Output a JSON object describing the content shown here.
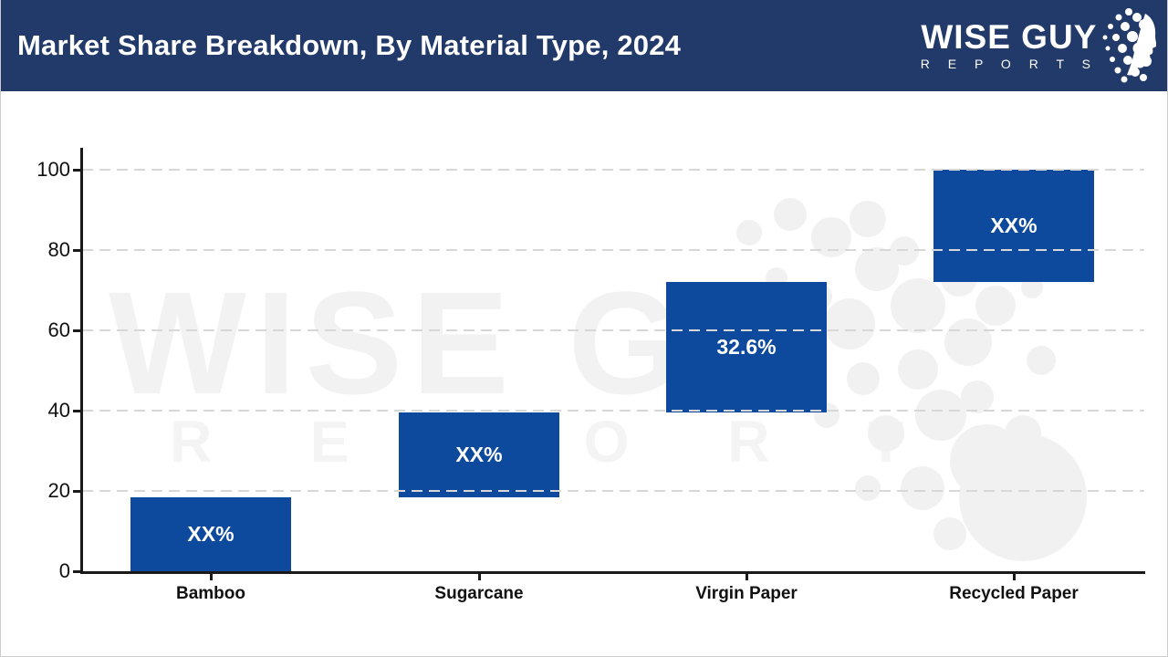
{
  "header": {
    "title": "Market Share Breakdown, By Material Type, 2024",
    "logo": {
      "name": "WISE GUY",
      "tagline": "R E P O R T S"
    }
  },
  "watermark": {
    "text_primary": "WISE GU",
    "text_secondary": "R E P O R T S"
  },
  "chart_data": {
    "type": "bar",
    "variant": "waterfall",
    "title": "Market Share Breakdown, By Material Type, 2024",
    "categories": [
      "Bamboo",
      "Sugarcane",
      "Virgin Paper",
      "Recycled Paper"
    ],
    "segments": [
      {
        "category": "Bamboo",
        "start": 0,
        "end": 18.5,
        "label": "XX%"
      },
      {
        "category": "Sugarcane",
        "start": 18.5,
        "end": 39.5,
        "label": "XX%"
      },
      {
        "category": "Virgin Paper",
        "start": 39.5,
        "end": 72.1,
        "value": 32.6,
        "label": "32.6%"
      },
      {
        "category": "Recycled Paper",
        "start": 72.1,
        "end": 100,
        "label": "XX%"
      }
    ],
    "xlabel": "",
    "ylabel": "",
    "ylim": [
      0,
      105
    ],
    "yticks": [
      0,
      20,
      40,
      60,
      80,
      100
    ],
    "grid": {
      "axis": "y",
      "style": "dashed",
      "color": "#d7d7d7"
    },
    "legend_position": "none",
    "bar_color": "#0d4a9e",
    "bar_label_color": "#ffffff"
  },
  "colors": {
    "header_bg": "#223a69",
    "bar": "#0d4a9e",
    "axis": "#1a1a1a",
    "watermark": "#f2f2f2",
    "page_border": "#cccccc"
  }
}
